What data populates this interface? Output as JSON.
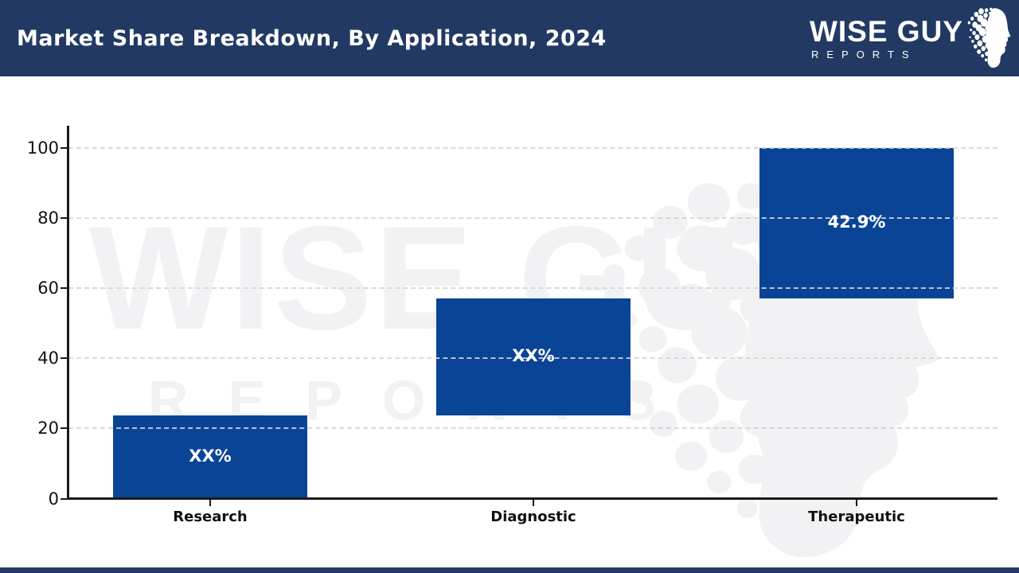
{
  "header": {
    "title": "Market Share Breakdown, By Application, 2024",
    "logo": {
      "line1": "WISE GUY",
      "line2": "REPORTS"
    }
  },
  "chart_data": {
    "type": "bar",
    "variant": "stacked-waterfall-segments",
    "title": "",
    "xlabel": "",
    "ylabel": "",
    "categories": [
      "Research",
      "Diagnostic",
      "Therapeutic"
    ],
    "segments": [
      {
        "category": "Research",
        "start": 0,
        "end": 23.8,
        "label": "XX%"
      },
      {
        "category": "Diagnostic",
        "start": 23.8,
        "end": 57.1,
        "label": "XX%"
      },
      {
        "category": "Therapeutic",
        "start": 57.1,
        "end": 100,
        "label": "42.9%"
      }
    ],
    "yticks": [
      0,
      20,
      40,
      60,
      80,
      100
    ],
    "ylim": [
      0,
      105
    ],
    "grid": "horizontal-dashed",
    "legend": "none"
  },
  "watermark": {
    "line1": "WISE GUY",
    "line2": "REPORTS"
  },
  "colors": {
    "header_bg": "#223a63",
    "footer_bg": "#223a63",
    "bar": "#0a4497",
    "bar_label": "#ffffff",
    "gridline": "#d4d4d4",
    "axis": "#1a1a1a",
    "watermark": "#f2f2f4",
    "title_text": "#ffffff"
  }
}
